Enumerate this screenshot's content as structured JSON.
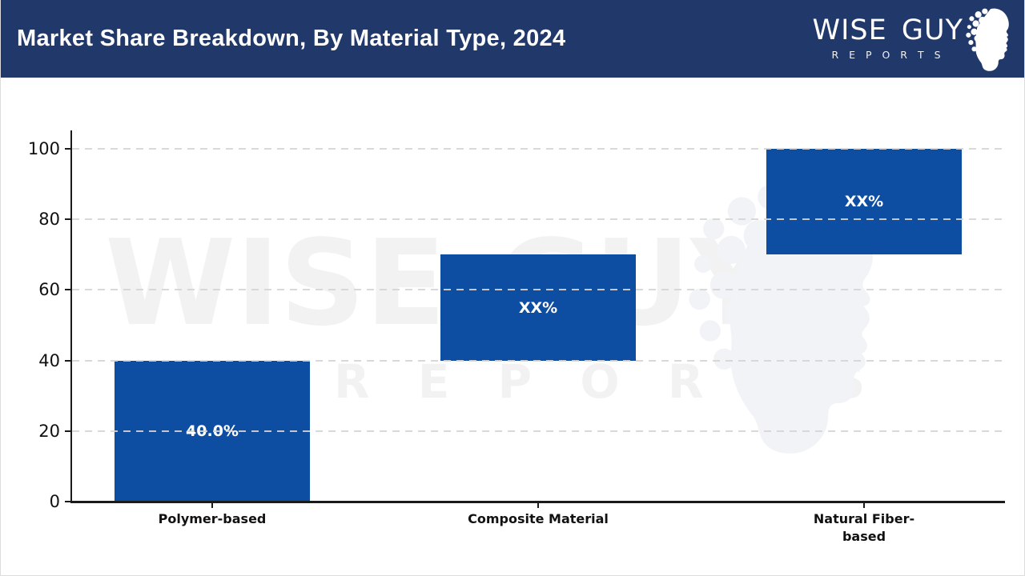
{
  "header": {
    "title": "Market Share Breakdown, By Material Type, 2024",
    "background_color": "#20386a",
    "logo": {
      "brand": "WISE GUY",
      "brand_sub": "R E P O R T S",
      "face_icon": "dotted-face-profile"
    }
  },
  "watermark": {
    "brand": "WISE GUY",
    "brand_sub": "R E P O R T S",
    "face_icon": "dotted-face-profile"
  },
  "chart_data": {
    "type": "bar",
    "variant": "waterfall-segments",
    "title": "Market Share Breakdown, By Material Type, 2024",
    "categories": [
      "Polymer-based",
      "Composite Material",
      "Natural Fiber-based"
    ],
    "categories_display": [
      "Polymer-based",
      "Composite Material",
      "Natural Fiber-\nbased"
    ],
    "series": [
      {
        "name": "Polymer-based",
        "start": 0,
        "end": 40,
        "label": "40.0%"
      },
      {
        "name": "Composite Material",
        "start": 40,
        "end": 70,
        "label": "XX%"
      },
      {
        "name": "Natural Fiber-based",
        "start": 70,
        "end": 100,
        "label": "XX%"
      }
    ],
    "masked_label": "XX%",
    "xlabel": "",
    "ylabel": "",
    "ylim": [
      0,
      105
    ],
    "yticks": [
      0,
      20,
      40,
      60,
      80,
      100
    ],
    "grid": "horizontal-dashed",
    "legend": "none",
    "bar_color": "#0d4da2",
    "bar_label_color": "#ffffff",
    "grid_color": "#d5d5d5",
    "axis_color": "#1a1a1a"
  }
}
